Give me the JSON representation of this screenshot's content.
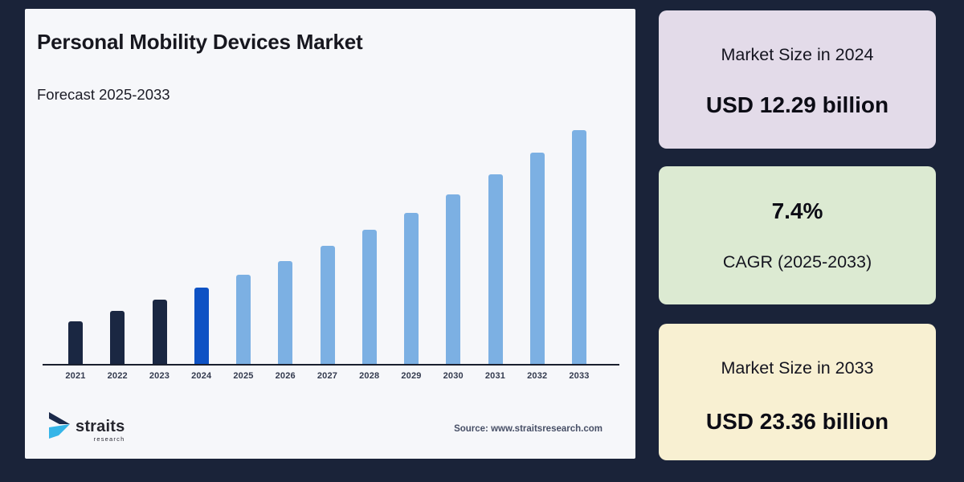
{
  "page": {
    "background": "#1a2339"
  },
  "chart_panel": {
    "background": "#f6f7fa",
    "title": "Personal Mobility Devices Market",
    "subtitle": "Forecast 2025-2033",
    "source_note": "Source: www.straitsresearch.com",
    "logo": {
      "brand": "straits",
      "brand_sub": "research"
    }
  },
  "chart_data": {
    "type": "bar",
    "title": "Personal Mobility Devices Market",
    "subtitle": "Forecast 2025-2033",
    "unit": "USD billion",
    "categories": [
      "2021",
      "2022",
      "2023",
      "2024",
      "2025",
      "2026",
      "2027",
      "2028",
      "2029",
      "2030",
      "2031",
      "2032",
      "2033"
    ],
    "values": [
      9.92,
      10.65,
      11.44,
      12.29,
      13.2,
      14.18,
      15.23,
      16.35,
      17.56,
      18.86,
      20.26,
      21.76,
      23.36
    ],
    "known_points": {
      "2024": 12.29,
      "2033": 23.36
    },
    "cagr_2025_2033": "7.4%",
    "bar_color_roles": [
      "historical",
      "historical",
      "historical",
      "current",
      "forecast",
      "forecast",
      "forecast",
      "forecast",
      "forecast",
      "forecast",
      "forecast",
      "forecast",
      "forecast"
    ],
    "colors": {
      "historical": "#1a2742",
      "current": "#0e52c4",
      "forecast": "#7cb0e3"
    },
    "legend": "none",
    "y_axis": "hidden",
    "grid": false
  },
  "stat_cards": [
    {
      "label": "Market Size in 2024",
      "value": "USD 12.29 billion",
      "background": "#e3dbe9",
      "value_position": "below"
    },
    {
      "label": "CAGR (2025-2033)",
      "value": "7.4%",
      "background": "#dcead2",
      "value_position": "above"
    },
    {
      "label": "Market Size in 2033",
      "value": "USD 23.36 billion",
      "background": "#f8f0d2",
      "value_position": "below"
    }
  ]
}
